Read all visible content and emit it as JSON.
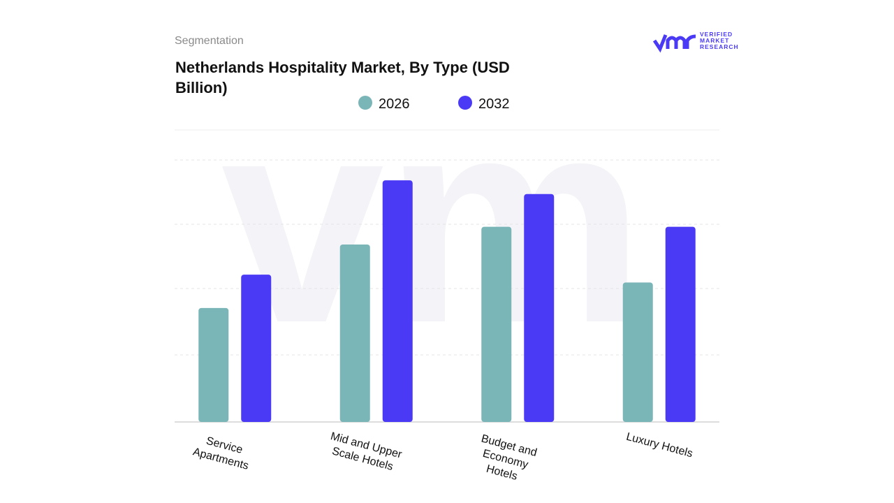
{
  "header": {
    "section": "Segmentation",
    "logo": {
      "line1": "VERIFIED",
      "line2": "MARKET",
      "line3": "RESEARCH"
    }
  },
  "chart_data": {
    "type": "bar",
    "title": "Netherlands Hospitality Market, By Type (USD Billion)",
    "categories": [
      "Service Apartments",
      "Mid and Upper Scale Hotels",
      "Budget and Economy Hotels",
      "Luxury Hotels"
    ],
    "series": [
      {
        "name": "2026",
        "color": "#7ab5b8",
        "values": [
          1.74,
          2.71,
          2.98,
          2.13
        ]
      },
      {
        "name": "2032",
        "color": "#4a3af5",
        "values": [
          2.25,
          3.69,
          3.48,
          2.98
        ]
      }
    ],
    "ylim": [
      0,
      4
    ]
  }
}
